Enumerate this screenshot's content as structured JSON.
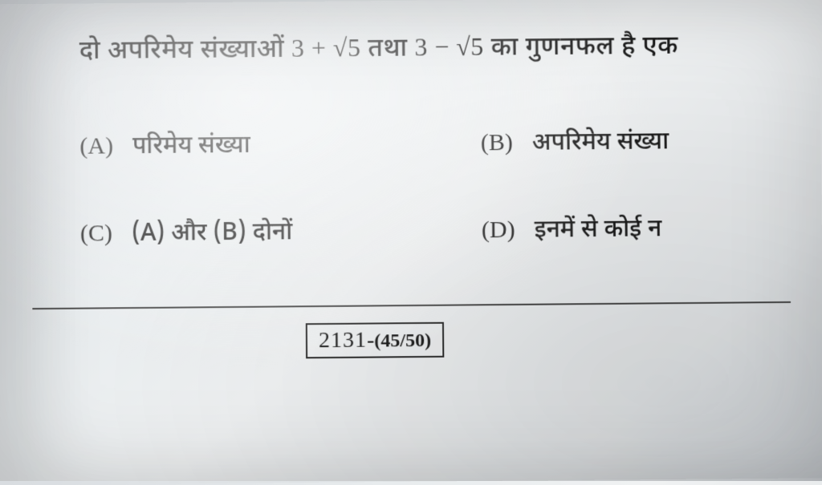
{
  "question": {
    "text_before_math1": "दो अपरिमेय संख्याओं ",
    "math1": "3 + √5",
    "text_between": " तथा ",
    "math2": "3 − √5",
    "text_after": " का गुणनफल है एक"
  },
  "options": {
    "a": {
      "label": "(A)",
      "text": "परिमेय संख्या"
    },
    "b": {
      "label": "(B)",
      "text": "अपरिमेय संख्या"
    },
    "c": {
      "label": "(C)",
      "text": "(A) और (B) दोनों"
    },
    "d": {
      "label": "(D)",
      "text": "इनमें से कोई न"
    }
  },
  "page_indicator": {
    "main": "2131",
    "sep": "-",
    "sub": "(45/50)"
  },
  "style": {
    "text_color": "#1a1a1a",
    "paper_bg": "#e8ecee",
    "border_color": "#2a2a2a",
    "question_fontsize": 32,
    "option_fontsize": 30,
    "pagebox_fontsize": 28
  }
}
